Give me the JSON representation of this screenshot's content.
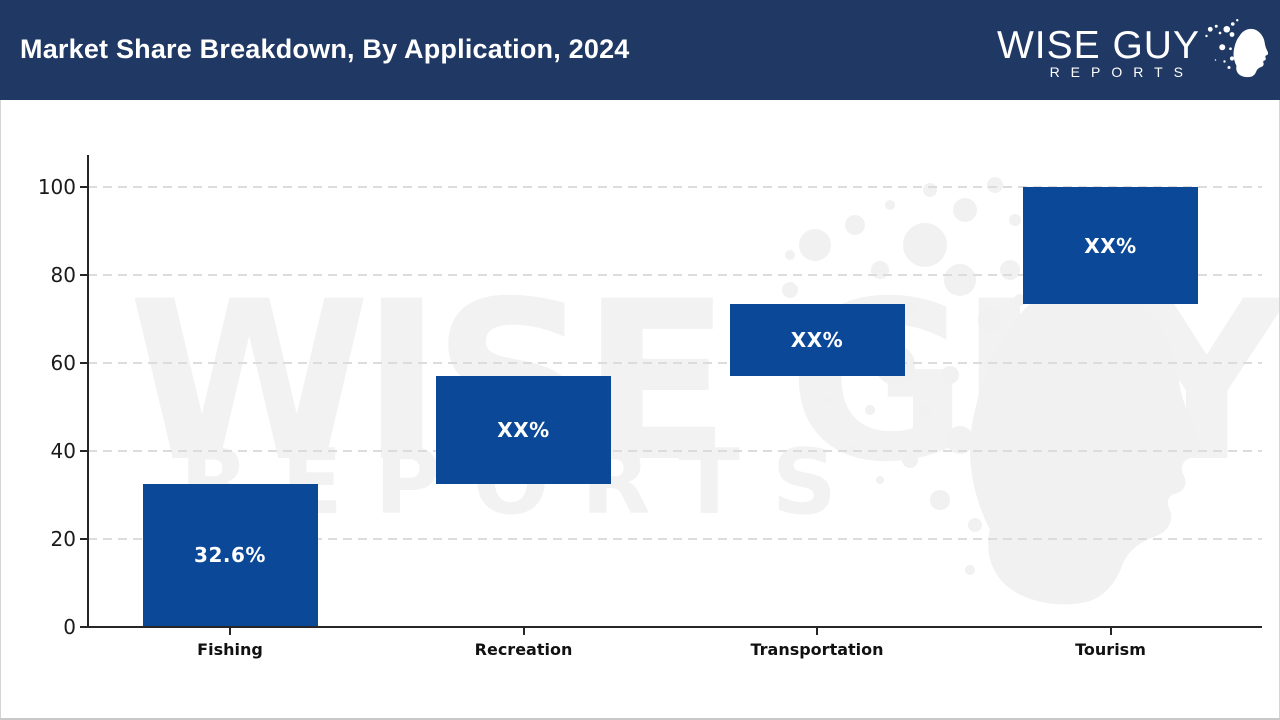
{
  "header": {
    "title": "Market Share Breakdown, By Application, 2024",
    "logo": {
      "line1": "WISE GUY",
      "line2": "REPORTS"
    }
  },
  "watermark": {
    "line1": "WISE GUY",
    "line2": "REPORTS"
  },
  "icons": {
    "logo_face": "dotted-profile-face",
    "watermark_face": "dotted-profile-face"
  },
  "chart_data": {
    "type": "bar",
    "subtype": "waterfall",
    "title": "Market Share Breakdown, By Application, 2024",
    "categories": [
      "Fishing",
      "Recreation",
      "Transportation",
      "Tourism"
    ],
    "series": [
      {
        "name": "Market Share (%)",
        "segments": [
          {
            "category": "Fishing",
            "start": 0,
            "end": 32.6,
            "label": "32.6%"
          },
          {
            "category": "Recreation",
            "start": 32.6,
            "end": 57.0,
            "label": "XX%"
          },
          {
            "category": "Transportation",
            "start": 57.0,
            "end": 73.3,
            "label": "XX%"
          },
          {
            "category": "Tourism",
            "start": 73.3,
            "end": 100.0,
            "label": "XX%"
          }
        ]
      }
    ],
    "xlabel": "",
    "ylabel": "",
    "ylim": [
      0,
      105
    ],
    "yticks": [
      0,
      20,
      40,
      60,
      80,
      100
    ],
    "grid": "horizontal-dashed",
    "legend": "none",
    "bar_color": "#0b4898",
    "bar_label_color": "#ffffff",
    "axis_color": "#262626",
    "grid_color": "#dcdcdc"
  }
}
